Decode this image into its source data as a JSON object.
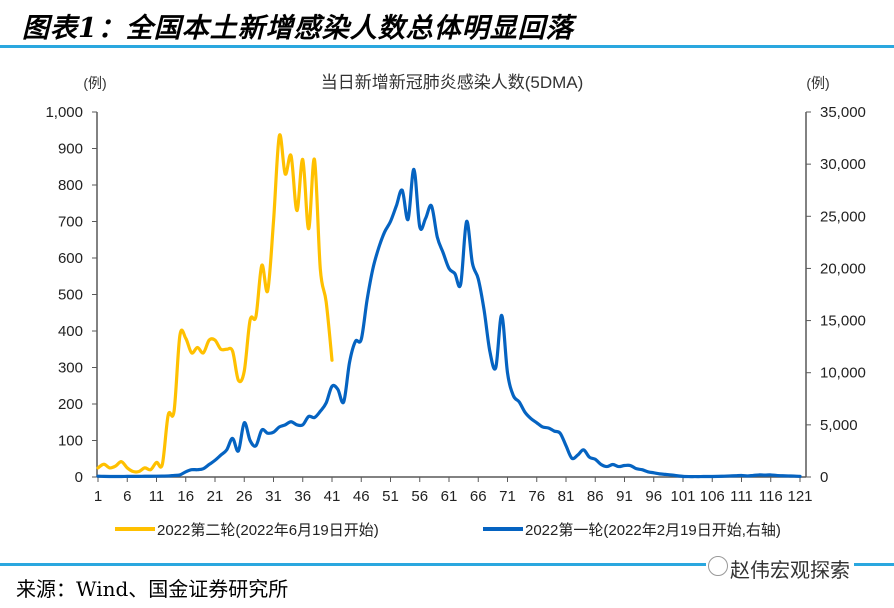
{
  "header": {
    "title": "图表1：全国本土新增感染人数总体明显回落"
  },
  "footer": {
    "source": "来源：Wind、国金证券研究所",
    "watermark": "赵伟宏观探索",
    "watermark_icon": "wechat-icon"
  },
  "colors": {
    "accent_rule": "#2aa7df",
    "series_round2": "#FFC000",
    "series_round1": "#0563C1",
    "axis": "#595959"
  },
  "chart_data": {
    "type": "line",
    "title": "当日新增新冠肺炎感染人数(5DMA)",
    "xlabel": "",
    "ylabel": "(例)",
    "ylabel_right": "(例)",
    "ylim": [
      0,
      1000
    ],
    "ylim_right": [
      0,
      35000
    ],
    "yticks": [
      "0",
      "100",
      "200",
      "300",
      "400",
      "500",
      "600",
      "700",
      "800",
      "900",
      "1,000"
    ],
    "yticks_right": [
      "0",
      "5,000",
      "10,000",
      "15,000",
      "20,000",
      "25,000",
      "30,000",
      "35,000"
    ],
    "xticks": [
      "1",
      "6",
      "11",
      "16",
      "21",
      "26",
      "31",
      "36",
      "41",
      "46",
      "51",
      "56",
      "61",
      "66",
      "71",
      "76",
      "81",
      "86",
      "91",
      "96",
      "101",
      "106",
      "111",
      "116",
      "121"
    ],
    "grid": false,
    "legend_position": "bottom",
    "series": [
      {
        "name": "2022第二轮(2022年6月19日开始)",
        "axis": "left",
        "color": "#FFC000",
        "x_start": 1,
        "values": [
          25,
          35,
          25,
          30,
          42,
          25,
          15,
          15,
          25,
          20,
          40,
          35,
          170,
          180,
          388,
          380,
          340,
          355,
          340,
          375,
          375,
          350,
          350,
          345,
          265,
          290,
          430,
          440,
          580,
          510,
          700,
          935,
          830,
          880,
          730,
          870,
          680,
          870,
          570,
          480,
          320
        ]
      },
      {
        "name": "2022第一轮(2022年2月19日开始,右轴)",
        "axis": "right",
        "color": "#0563C1",
        "x_start": 1,
        "values": [
          80,
          60,
          50,
          50,
          50,
          60,
          60,
          60,
          70,
          70,
          80,
          90,
          100,
          150,
          200,
          500,
          700,
          700,
          800,
          1200,
          1600,
          2100,
          2600,
          3700,
          2500,
          5200,
          3500,
          3000,
          4500,
          4200,
          4300,
          4800,
          5000,
          5300,
          5000,
          5000,
          5800,
          5700,
          6300,
          7100,
          8700,
          8400,
          7200,
          11000,
          13000,
          13200,
          17000,
          20000,
          22000,
          23500,
          24500,
          26000,
          27500,
          24700,
          29500,
          24000,
          24800,
          26000,
          23000,
          21500,
          20000,
          19500,
          18500,
          24500,
          20500,
          19000,
          16000,
          12000,
          10500,
          15500,
          10000,
          7800,
          7200,
          6200,
          5600,
          5200,
          4800,
          4700,
          4400,
          4200,
          3000,
          1800,
          2100,
          2600,
          1900,
          1700,
          1200,
          1000,
          1200,
          1000,
          1100,
          1100,
          800,
          700,
          500,
          400,
          300,
          250,
          200,
          120,
          60,
          40,
          40,
          40,
          50,
          50,
          60,
          80,
          100,
          120,
          150,
          100,
          150,
          200,
          180,
          200,
          150,
          120,
          100,
          90,
          60
        ]
      }
    ]
  }
}
